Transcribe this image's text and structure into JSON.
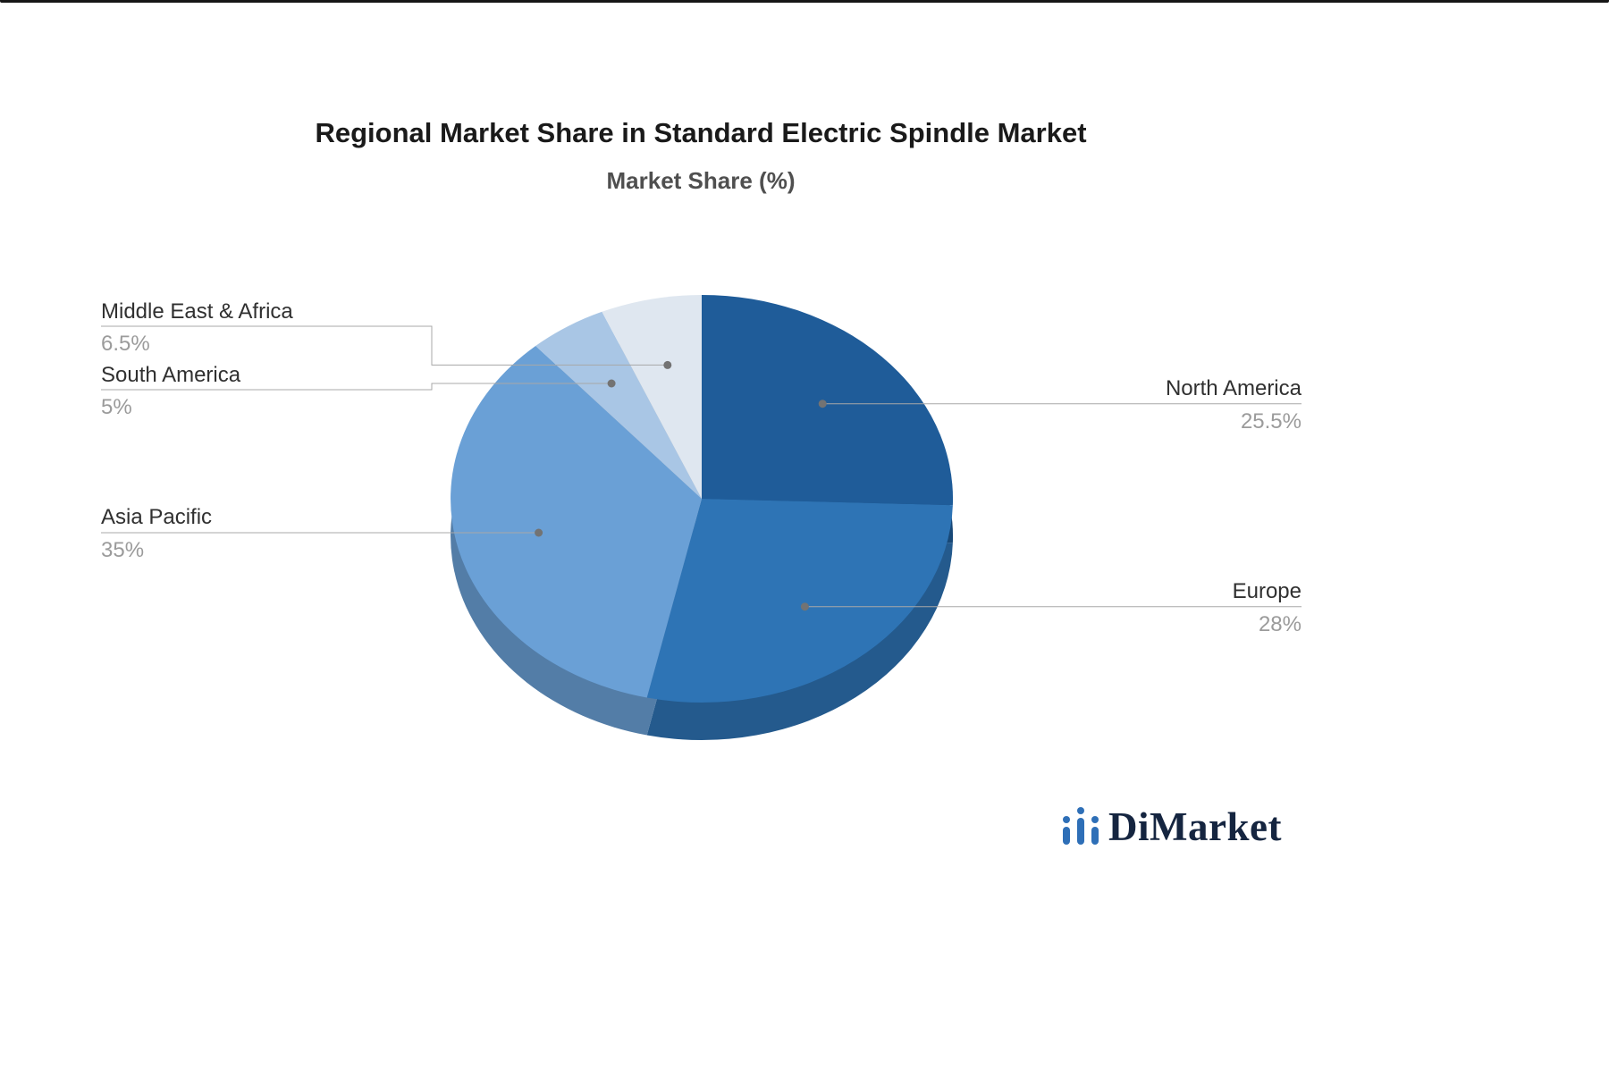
{
  "page": {
    "title": "Regional Market Share in Standard Electric Spindle Market",
    "subtitle": "Market Share (%)"
  },
  "logo": {
    "text": "DiMarket",
    "icon": "bar-chart-icon",
    "icon_color": "#2e6fb7",
    "text_color": "#152540"
  },
  "chart_data": {
    "type": "pie",
    "title": "Regional Market Share in Standard Electric Spindle Market",
    "subtitle": "Market Share (%)",
    "unit": "%",
    "labels": [
      "North America",
      "Europe",
      "Asia Pacific",
      "South America",
      "Middle East & Africa"
    ],
    "values": [
      25.5,
      28,
      35,
      5,
      6.5
    ],
    "display_values": [
      "25.5%",
      "28%",
      "35%",
      "5%",
      "6.5%"
    ],
    "colors": [
      "#1f5c99",
      "#2e74b5",
      "#6aa0d6",
      "#a9c6e5",
      "#dfe7f0"
    ],
    "start_angle_deg": 0,
    "direction": "clockwise",
    "effect_3d": true,
    "legend": "none",
    "label_line_color": "#a8a8a8",
    "label_dot_color": "#737373",
    "label_name_color": "#303030",
    "label_value_color": "#9b9b9b"
  }
}
